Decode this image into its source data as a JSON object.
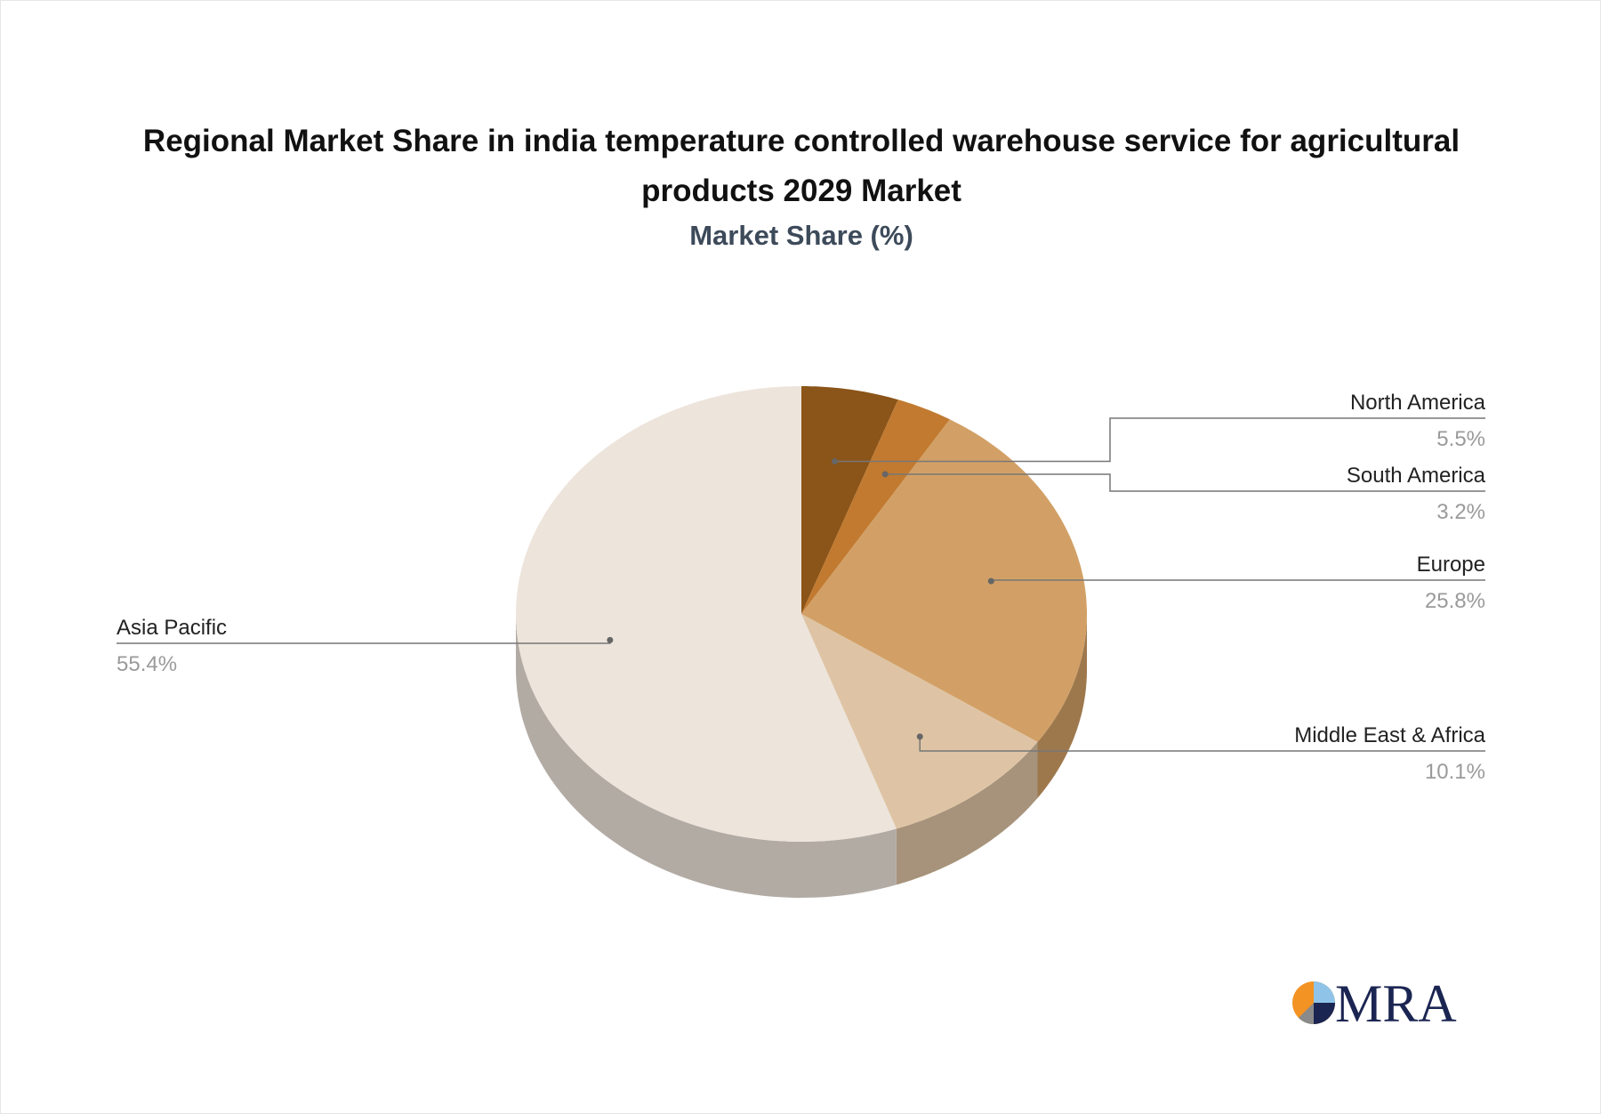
{
  "chart_data": {
    "type": "pie",
    "title": "Regional Market Share in india temperature controlled warehouse service for agricultural products 2029 Market",
    "subtitle": "Market Share (%)",
    "categories": [
      "North America",
      "South America",
      "Europe",
      "Middle East & Africa",
      "Asia Pacific"
    ],
    "values": [
      5.5,
      3.2,
      25.8,
      10.1,
      55.4
    ],
    "value_labels": [
      "5.5%",
      "3.2%",
      "25.8%",
      "10.1%",
      "55.4%"
    ],
    "colors": [
      "#8b5418",
      "#c17a30",
      "#d2a066",
      "#dec4a4",
      "#ede4db"
    ]
  },
  "logo": "MRA"
}
